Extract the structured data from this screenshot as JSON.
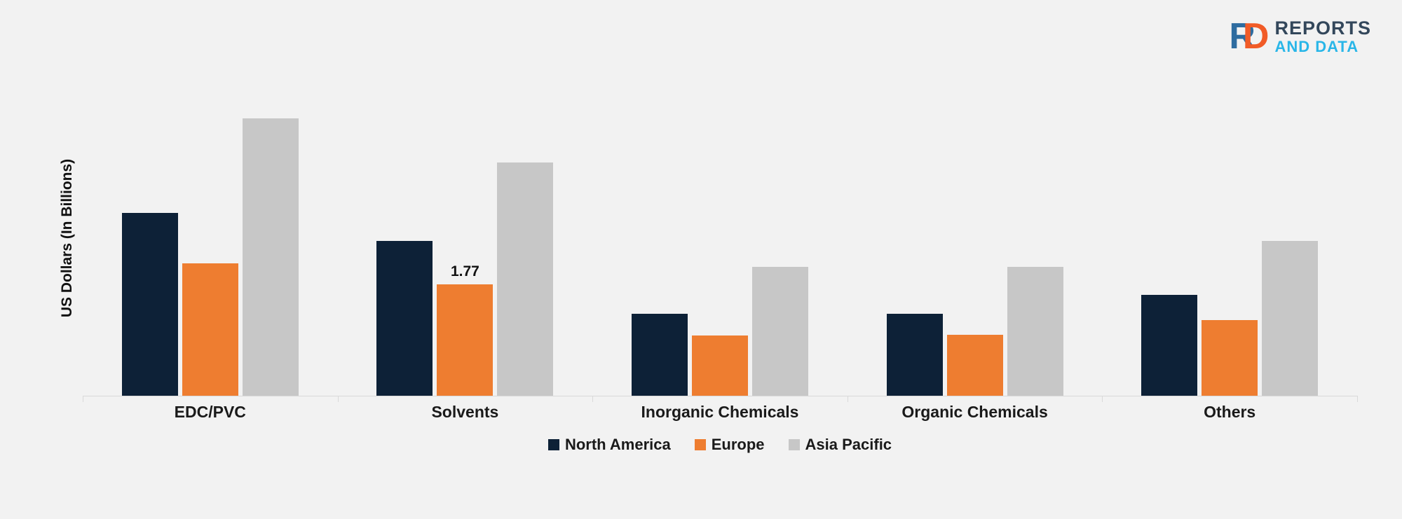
{
  "page": {
    "background": "#f2f2f2"
  },
  "logo": {
    "mark_r": "R",
    "mark_d": "D",
    "line1": "REPORTS",
    "line2": "AND DATA",
    "mark_r_color": "#2e6ca0",
    "mark_d_color": "#f15b27",
    "line1_color": "#33475b",
    "line2_color": "#29b6e8"
  },
  "chart_data": {
    "type": "bar",
    "title": "",
    "xlabel": "",
    "ylabel": "US Dollars (In Billions)",
    "ylim": [
      0,
      5
    ],
    "grid": false,
    "legend_position": "bottom",
    "categories": [
      "EDC/PVC",
      "Solvents",
      "Inorganic Chemicals",
      "Organic Chemicals",
      "Others"
    ],
    "series": [
      {
        "name": "North America",
        "color": "#0d2137",
        "values": [
          2.9,
          2.45,
          1.3,
          1.3,
          1.6
        ],
        "point_labels": [
          null,
          null,
          null,
          null,
          null
        ]
      },
      {
        "name": "Europe",
        "color": "#ee7d30",
        "values": [
          2.1,
          1.77,
          0.95,
          0.97,
          1.2
        ],
        "point_labels": [
          null,
          "1.77",
          null,
          null,
          null
        ]
      },
      {
        "name": "Asia Pacific",
        "color": "#c7c7c7",
        "values": [
          4.4,
          3.7,
          2.05,
          2.05,
          2.45
        ],
        "point_labels": [
          null,
          null,
          null,
          null,
          null
        ]
      }
    ]
  }
}
